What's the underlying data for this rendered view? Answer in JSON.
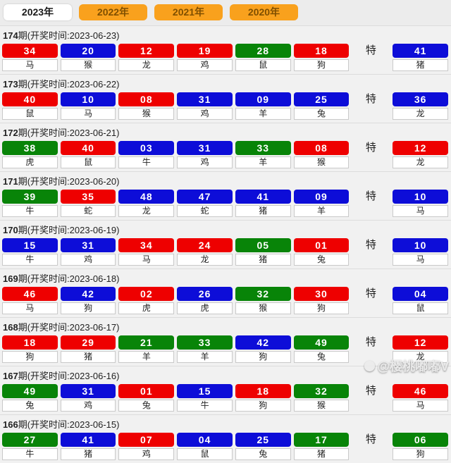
{
  "tabs": [
    {
      "label": "2023年",
      "active": true
    },
    {
      "label": "2022年",
      "active": false
    },
    {
      "label": "2021年",
      "active": false
    },
    {
      "label": "2020年",
      "active": false
    }
  ],
  "colors": {
    "red": "#ee0000",
    "blue": "#0d0dd8",
    "green": "#088408",
    "tab_orange": "#f9a11d"
  },
  "special_label": "特",
  "draws": [
    {
      "period_num": "174",
      "period_rest": "期(开奖时间:2023-06-23)",
      "balls": [
        {
          "num": "34",
          "color": "red",
          "zodiac": "马"
        },
        {
          "num": "20",
          "color": "blue",
          "zodiac": "猴"
        },
        {
          "num": "12",
          "color": "red",
          "zodiac": "龙"
        },
        {
          "num": "19",
          "color": "red",
          "zodiac": "鸡"
        },
        {
          "num": "28",
          "color": "green",
          "zodiac": "鼠"
        },
        {
          "num": "18",
          "color": "red",
          "zodiac": "狗"
        }
      ],
      "special": {
        "num": "41",
        "color": "blue",
        "zodiac": "猪"
      }
    },
    {
      "period_num": "173",
      "period_rest": "期(开奖时间:2023-06-22)",
      "balls": [
        {
          "num": "40",
          "color": "red",
          "zodiac": "鼠"
        },
        {
          "num": "10",
          "color": "blue",
          "zodiac": "马"
        },
        {
          "num": "08",
          "color": "red",
          "zodiac": "猴"
        },
        {
          "num": "31",
          "color": "blue",
          "zodiac": "鸡"
        },
        {
          "num": "09",
          "color": "blue",
          "zodiac": "羊"
        },
        {
          "num": "25",
          "color": "blue",
          "zodiac": "兔"
        }
      ],
      "special": {
        "num": "36",
        "color": "blue",
        "zodiac": "龙"
      }
    },
    {
      "period_num": "172",
      "period_rest": "期(开奖时间:2023-06-21)",
      "balls": [
        {
          "num": "38",
          "color": "green",
          "zodiac": "虎"
        },
        {
          "num": "40",
          "color": "red",
          "zodiac": "鼠"
        },
        {
          "num": "03",
          "color": "blue",
          "zodiac": "牛"
        },
        {
          "num": "31",
          "color": "blue",
          "zodiac": "鸡"
        },
        {
          "num": "33",
          "color": "green",
          "zodiac": "羊"
        },
        {
          "num": "08",
          "color": "red",
          "zodiac": "猴"
        }
      ],
      "special": {
        "num": "12",
        "color": "red",
        "zodiac": "龙"
      }
    },
    {
      "period_num": "171",
      "period_rest": "期(开奖时间:2023-06-20)",
      "balls": [
        {
          "num": "39",
          "color": "green",
          "zodiac": "牛"
        },
        {
          "num": "35",
          "color": "red",
          "zodiac": "蛇"
        },
        {
          "num": "48",
          "color": "blue",
          "zodiac": "龙"
        },
        {
          "num": "47",
          "color": "blue",
          "zodiac": "蛇"
        },
        {
          "num": "41",
          "color": "blue",
          "zodiac": "猪"
        },
        {
          "num": "09",
          "color": "blue",
          "zodiac": "羊"
        }
      ],
      "special": {
        "num": "10",
        "color": "blue",
        "zodiac": "马"
      }
    },
    {
      "period_num": "170",
      "period_rest": "期(开奖时间:2023-06-19)",
      "balls": [
        {
          "num": "15",
          "color": "blue",
          "zodiac": "牛"
        },
        {
          "num": "31",
          "color": "blue",
          "zodiac": "鸡"
        },
        {
          "num": "34",
          "color": "red",
          "zodiac": "马"
        },
        {
          "num": "24",
          "color": "red",
          "zodiac": "龙"
        },
        {
          "num": "05",
          "color": "green",
          "zodiac": "猪"
        },
        {
          "num": "01",
          "color": "red",
          "zodiac": "兔"
        }
      ],
      "special": {
        "num": "10",
        "color": "blue",
        "zodiac": "马"
      }
    },
    {
      "period_num": "169",
      "period_rest": "期(开奖时间:2023-06-18)",
      "balls": [
        {
          "num": "46",
          "color": "red",
          "zodiac": "马"
        },
        {
          "num": "42",
          "color": "blue",
          "zodiac": "狗"
        },
        {
          "num": "02",
          "color": "red",
          "zodiac": "虎"
        },
        {
          "num": "26",
          "color": "blue",
          "zodiac": "虎"
        },
        {
          "num": "32",
          "color": "green",
          "zodiac": "猴"
        },
        {
          "num": "30",
          "color": "red",
          "zodiac": "狗"
        }
      ],
      "special": {
        "num": "04",
        "color": "blue",
        "zodiac": "鼠"
      }
    },
    {
      "period_num": "168",
      "period_rest": "期(开奖时间:2023-06-17)",
      "balls": [
        {
          "num": "18",
          "color": "red",
          "zodiac": "狗"
        },
        {
          "num": "29",
          "color": "red",
          "zodiac": "猪"
        },
        {
          "num": "21",
          "color": "green",
          "zodiac": "羊"
        },
        {
          "num": "33",
          "color": "green",
          "zodiac": "羊"
        },
        {
          "num": "42",
          "color": "blue",
          "zodiac": "狗"
        },
        {
          "num": "49",
          "color": "green",
          "zodiac": "兔"
        }
      ],
      "special": {
        "num": "12",
        "color": "red",
        "zodiac": "龙"
      }
    },
    {
      "period_num": "167",
      "period_rest": "期(开奖时间:2023-06-16)",
      "balls": [
        {
          "num": "49",
          "color": "green",
          "zodiac": "兔"
        },
        {
          "num": "31",
          "color": "blue",
          "zodiac": "鸡"
        },
        {
          "num": "01",
          "color": "red",
          "zodiac": "兔"
        },
        {
          "num": "15",
          "color": "blue",
          "zodiac": "牛"
        },
        {
          "num": "18",
          "color": "red",
          "zodiac": "狗"
        },
        {
          "num": "32",
          "color": "green",
          "zodiac": "猴"
        }
      ],
      "special": {
        "num": "46",
        "color": "red",
        "zodiac": "马"
      }
    },
    {
      "period_num": "166",
      "period_rest": "期(开奖时间:2023-06-15)",
      "balls": [
        {
          "num": "27",
          "color": "green",
          "zodiac": "牛"
        },
        {
          "num": "41",
          "color": "blue",
          "zodiac": "猪"
        },
        {
          "num": "07",
          "color": "red",
          "zodiac": "鸡"
        },
        {
          "num": "04",
          "color": "blue",
          "zodiac": "鼠"
        },
        {
          "num": "25",
          "color": "blue",
          "zodiac": "兔"
        },
        {
          "num": "17",
          "color": "green",
          "zodiac": "猪"
        }
      ],
      "special": {
        "num": "06",
        "color": "green",
        "zodiac": "狗"
      }
    }
  ],
  "watermark": {
    "text": "@樱桃嘟嘟V"
  }
}
